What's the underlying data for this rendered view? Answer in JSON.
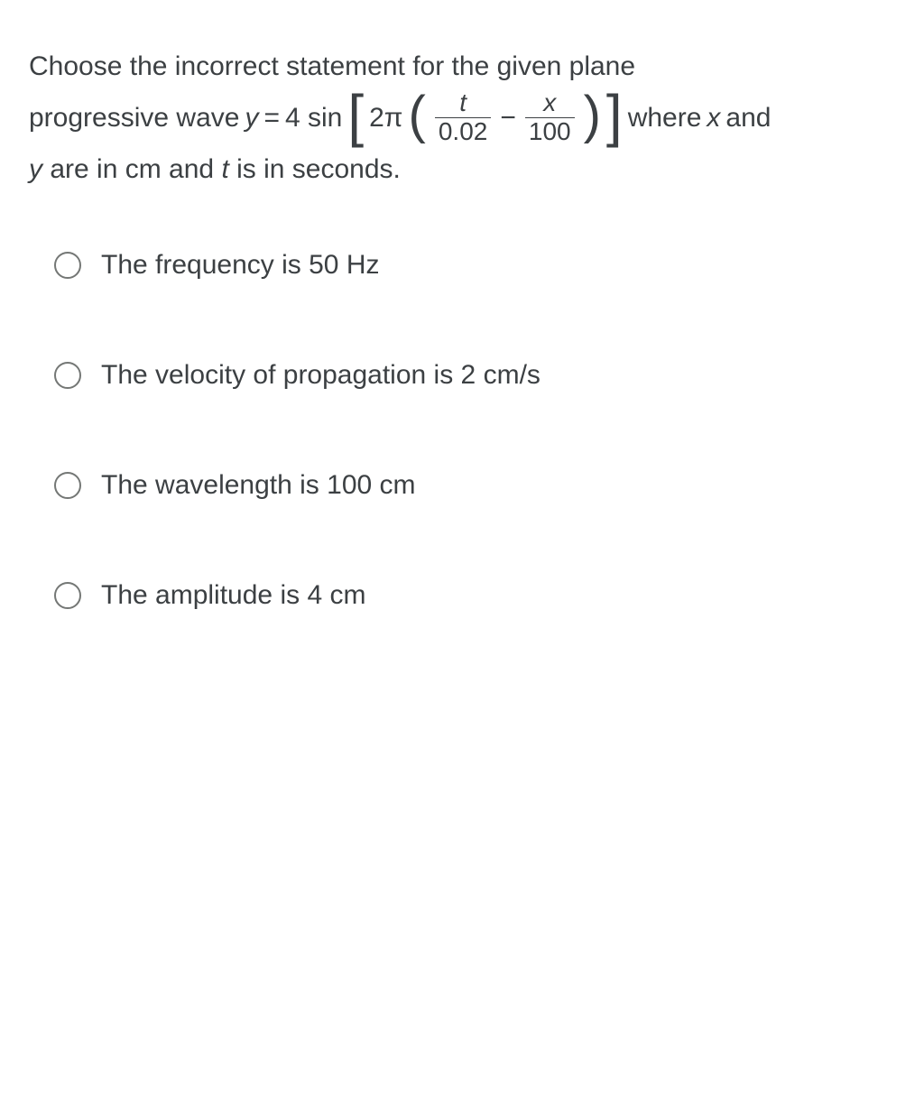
{
  "question": {
    "line1": "Choose the incorrect statement for the given plane",
    "line2_prefix": "progressive wave ",
    "equation": {
      "y_eq": "y",
      "equals": " = ",
      "coef": "4 sin",
      "two_pi": "2π",
      "frac1_num": "t",
      "frac1_den": "0.02",
      "minus": "−",
      "frac2_num": "x",
      "frac2_den": "100"
    },
    "line2_suffix": " where ",
    "x_var": "x",
    "and_txt": " and",
    "line3_y": "y",
    "line3_mid": " are in cm and ",
    "line3_t": "t",
    "line3_end": " is in seconds."
  },
  "options": [
    {
      "label": "The frequency is 50 Hz"
    },
    {
      "label": "The velocity of propagation is 2 cm/s"
    },
    {
      "label": "The wavelength is 100 cm"
    },
    {
      "label": "The amplitude is 4 cm"
    }
  ],
  "colors": {
    "text": "#3c4043",
    "radio_border": "#747775",
    "background": "#ffffff"
  }
}
